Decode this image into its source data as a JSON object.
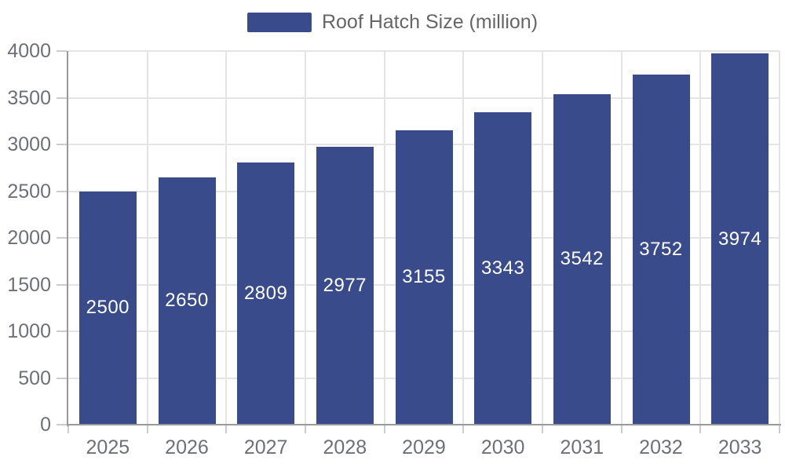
{
  "chart_data": {
    "type": "bar",
    "title": "",
    "categories": [
      "2025",
      "2026",
      "2027",
      "2028",
      "2029",
      "2030",
      "2031",
      "2032",
      "2033"
    ],
    "series": [
      {
        "name": "Roof Hatch Size (million)",
        "values": [
          2500,
          2650,
          2809,
          2977,
          3155,
          3343,
          3542,
          3752,
          3974
        ]
      }
    ],
    "xlabel": "",
    "ylabel": "",
    "ylim": [
      0,
      4000
    ],
    "yticks": [
      0,
      500,
      1000,
      1500,
      2000,
      2500,
      3000,
      3500,
      4000
    ],
    "grid": "horizontal-and-vertical",
    "legend_position": "top-center",
    "value_label_position": "inside-center"
  },
  "legend": {
    "label": "Roof Hatch Size (million)"
  },
  "colors": {
    "bar": "#3A4B8B",
    "bar_label": "#FFFFFF",
    "axis_line": "#9A9A9A",
    "tick": "#CCCCCC",
    "gridline": "#E4E4E4",
    "axis_label": "#6E7079",
    "legend_text": "#666666",
    "background": "#FFFFFF"
  }
}
